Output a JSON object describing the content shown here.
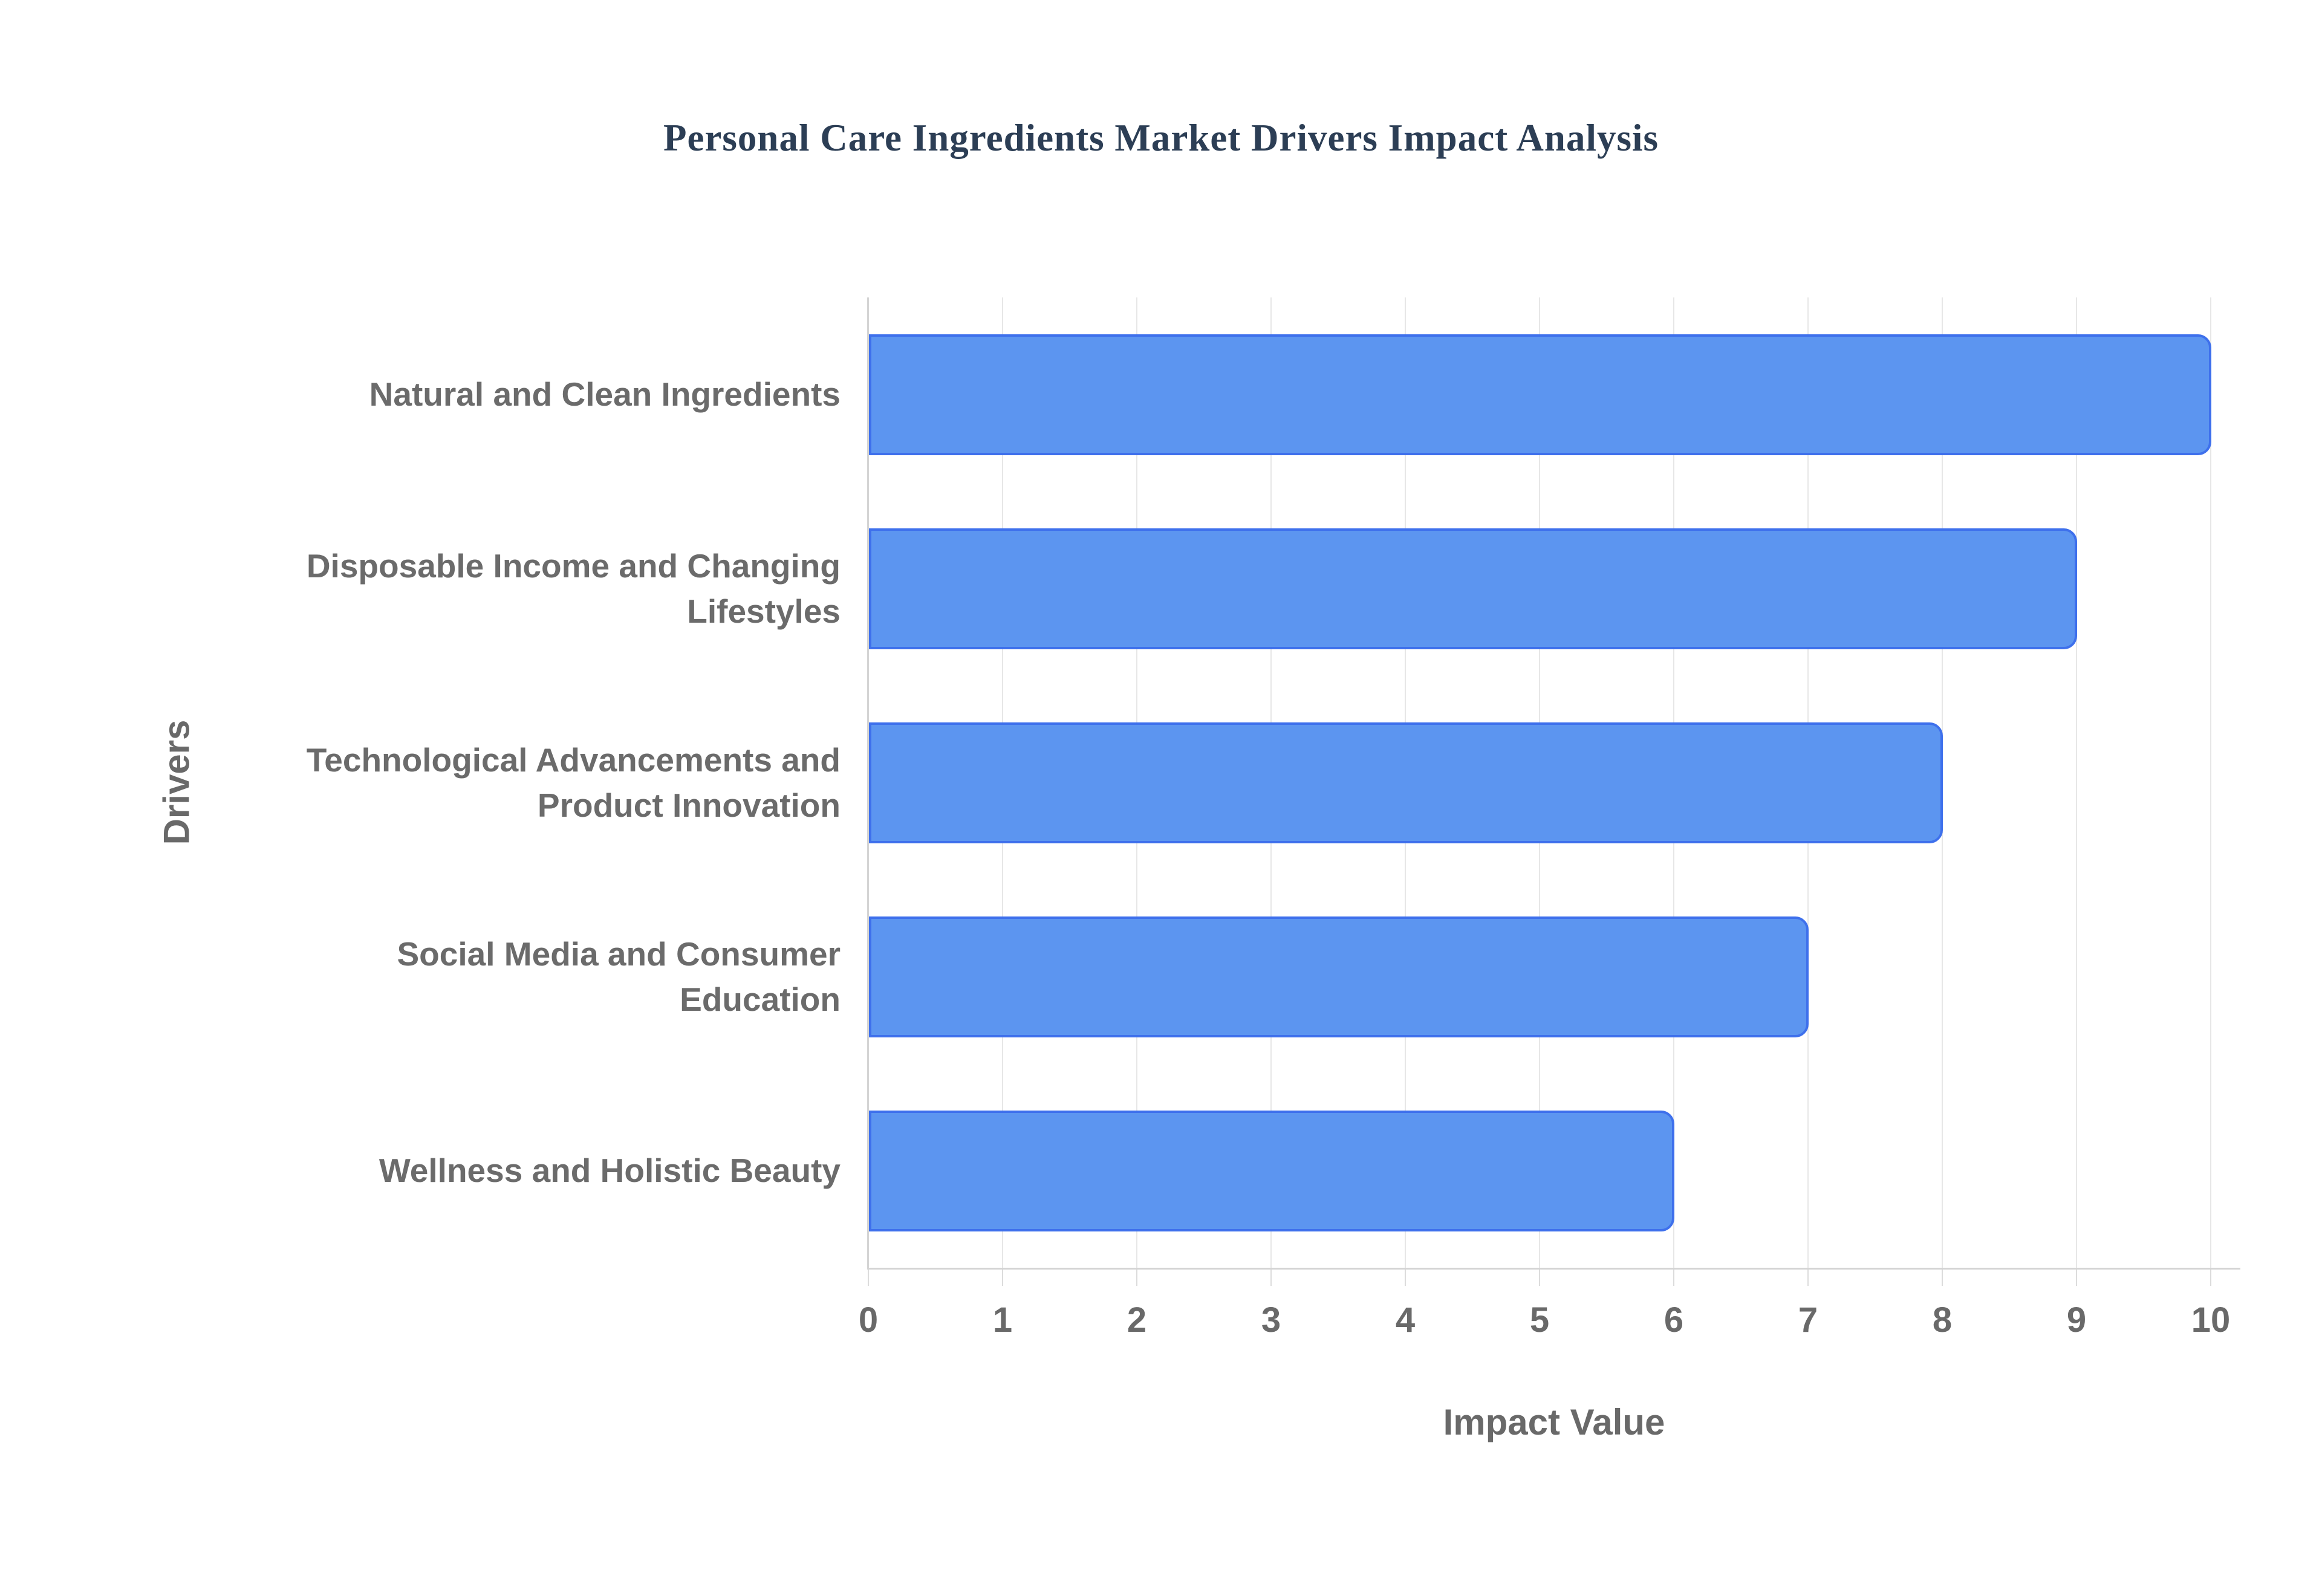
{
  "chart_data": {
    "type": "bar",
    "orientation": "horizontal",
    "title": "Personal Care Ingredients Market Drivers Impact Analysis",
    "categories": [
      "Natural and Clean Ingredients",
      "Disposable Income and Changing Lifestyles",
      "Technological Advancements and Product Innovation",
      "Social Media and Consumer Education",
      "Wellness and Holistic Beauty"
    ],
    "values": [
      10,
      9,
      8,
      7,
      6
    ],
    "xlabel": "Impact Value",
    "ylabel": "Drivers",
    "xlim": [
      0,
      10
    ],
    "xticks": [
      0,
      1,
      2,
      3,
      4,
      5,
      6,
      7,
      8,
      9,
      10
    ],
    "grid": true,
    "legend": false,
    "colors": {
      "bar_fill": "#5C95F0",
      "bar_border": "#3E70EC",
      "title_text": "#2C3E55",
      "axis_text": "#696969",
      "category_text": "#6B6B6B",
      "gridline": "#E7E7E7",
      "axis_line": "#D4D4D4",
      "background": "#FFFFFF"
    }
  }
}
